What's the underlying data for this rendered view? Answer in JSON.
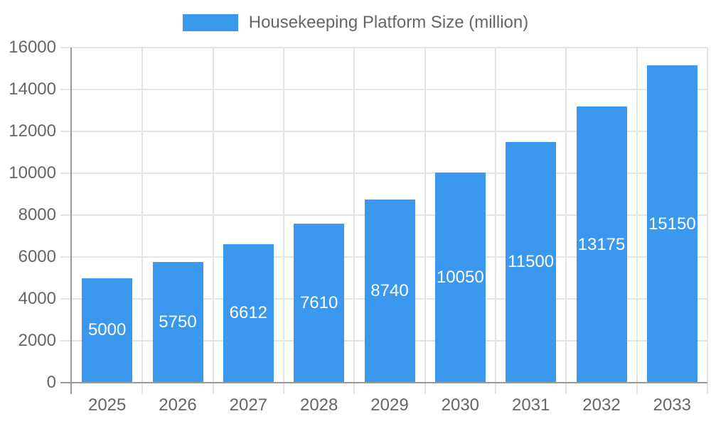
{
  "chart_data": {
    "type": "bar",
    "title": "Housekeeping Platform Size (million)",
    "series_name": "Housekeeping Platform Size (million)",
    "categories": [
      "2025",
      "2026",
      "2027",
      "2028",
      "2029",
      "2030",
      "2031",
      "2032",
      "2033"
    ],
    "values": [
      5000,
      5750,
      6612,
      7610,
      8740,
      10050,
      11500,
      13175,
      15150
    ],
    "xlabel": "",
    "ylabel": "",
    "ylim": [
      0,
      16000
    ],
    "ytick_step": 2000,
    "yticks": [
      0,
      2000,
      4000,
      6000,
      8000,
      10000,
      12000,
      14000,
      16000
    ],
    "grid": true,
    "legend_position": "top",
    "value_label_position": "inside-center",
    "colors": {
      "bar": "#3A99EE",
      "value_label": "#ffffff",
      "axis_text": "#666666",
      "grid": "#e4e4e4",
      "axis_line": "#999999",
      "background": "#ffffff"
    }
  }
}
